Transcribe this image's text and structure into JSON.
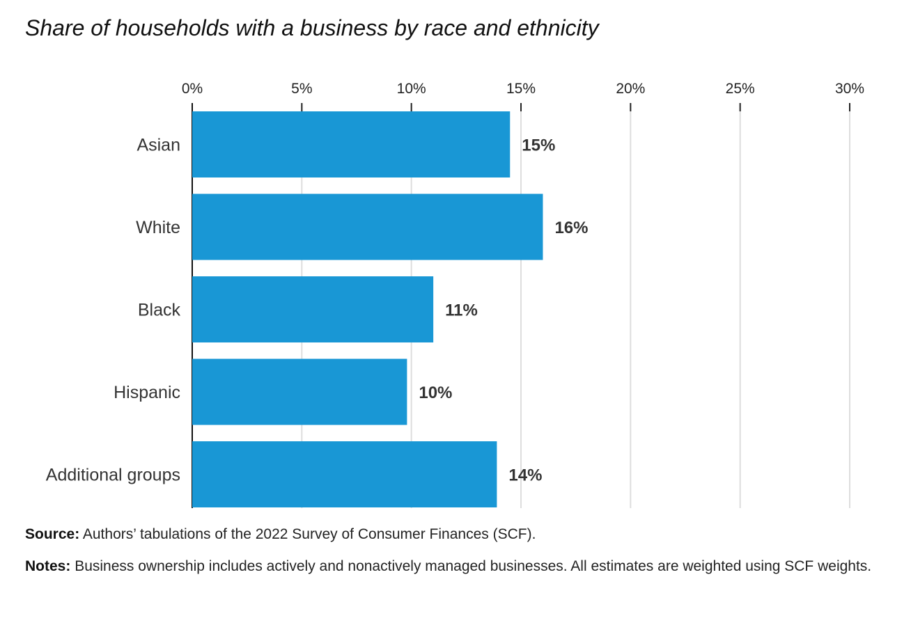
{
  "chart_data": {
    "type": "bar",
    "orientation": "horizontal",
    "title": "Share of households with a business by race and ethnicity",
    "categories": [
      "Asian",
      "White",
      "Black",
      "Hispanic",
      "Additional groups"
    ],
    "values": [
      14.5,
      16.0,
      11.0,
      9.8,
      13.9
    ],
    "value_labels": [
      "15%",
      "16%",
      "11%",
      "10%",
      "14%"
    ],
    "x_ticks": [
      0,
      5,
      10,
      15,
      20,
      25,
      30
    ],
    "x_tick_labels": [
      "0%",
      "5%",
      "10%",
      "15%",
      "20%",
      "25%",
      "30%"
    ],
    "xlim": [
      0,
      30
    ],
    "xlabel": "",
    "ylabel": "",
    "grid": true,
    "axis_position": "top",
    "bar_color": "#1997d5",
    "grid_color": "#dddddd"
  },
  "source": {
    "label": "Source:",
    "text": "Authors’ tabulations of the 2022 Survey of Consumer Finances (SCF)."
  },
  "notes": {
    "label": "Notes:",
    "text": "Business ownership includes actively and nonactively managed businesses. All estimates are weighted using SCF weights."
  }
}
